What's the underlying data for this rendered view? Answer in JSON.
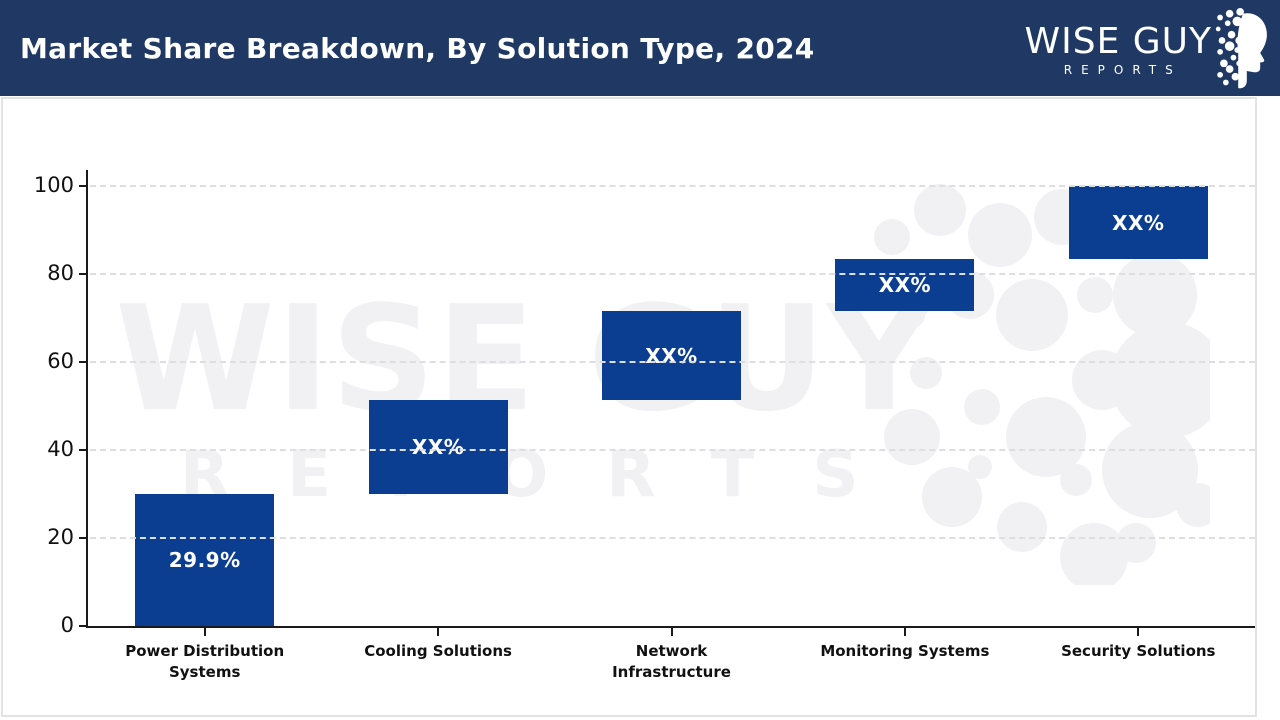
{
  "header": {
    "title": "Market Share Breakdown, By Solution Type, 2024",
    "bg_color": "#1f3864",
    "logo": {
      "line1": "WISE GUY",
      "line2": "REPORTS"
    }
  },
  "watermark": {
    "line1": "WISE GUY",
    "line2": "REPORTS"
  },
  "chart_data": {
    "type": "bar",
    "subtype": "waterfall",
    "title": "Market Share Breakdown, By Solution Type, 2024",
    "categories": [
      [
        "Power Distribution",
        "Systems"
      ],
      [
        "Cooling Solutions"
      ],
      [
        "Network",
        "Infrastructure"
      ],
      [
        "Monitoring Systems"
      ],
      [
        "Security Solutions"
      ]
    ],
    "series": [
      {
        "name": "Market share 2024 (cumulative %)",
        "segments": [
          {
            "category": "Power Distribution Systems",
            "start": 0,
            "end": 29.9,
            "label": "29.9%"
          },
          {
            "category": "Cooling Solutions",
            "start": 29.9,
            "end": 51.3,
            "label": "XX%"
          },
          {
            "category": "Network Infrastructure",
            "start": 51.3,
            "end": 71.6,
            "label": "XX%"
          },
          {
            "category": "Monitoring Systems",
            "start": 71.6,
            "end": 83.4,
            "label": "XX%"
          },
          {
            "category": "Security Solutions",
            "start": 83.4,
            "end": 100,
            "label": "XX%"
          }
        ]
      }
    ],
    "ylim": [
      0,
      100
    ],
    "yticks": [
      0,
      20,
      40,
      60,
      80,
      100
    ],
    "grid": "horizontal-dashed",
    "legend": "none",
    "bar_color": "#0b3d91",
    "label_color": "#ffffff",
    "axis_color": "#1a1a1a",
    "gridline_color": "#dedee2"
  }
}
